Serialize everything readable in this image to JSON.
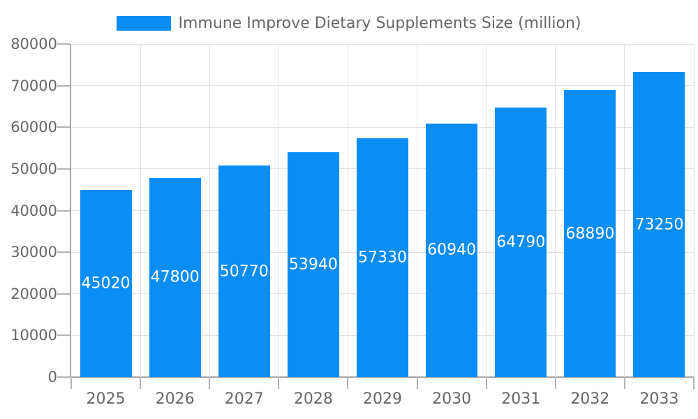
{
  "legend": {
    "swatch_color": "#0a8df5"
  },
  "chart_data": {
    "type": "bar",
    "title": "Immune Improve Dietary Supplements Size (million)",
    "categories": [
      "2025",
      "2026",
      "2027",
      "2028",
      "2029",
      "2030",
      "2031",
      "2032",
      "2033"
    ],
    "values": [
      45020,
      47800,
      50770,
      53940,
      57330,
      60940,
      64790,
      68890,
      73250
    ],
    "xlabel": "",
    "ylabel": "",
    "ylim": [
      0,
      80000
    ],
    "ytick_step": 10000,
    "ytick_labels": [
      "0",
      "10000",
      "20000",
      "30000",
      "40000",
      "50000",
      "60000",
      "70000",
      "80000"
    ],
    "grid": true,
    "legend_position": "top",
    "bar_color": "#0a8df5",
    "value_label_color": "#ffffff"
  },
  "colors": {
    "background": "#ffffff",
    "bar": "#0a8df5",
    "axis_text": "#666666",
    "grid_line": "#e2e2e2",
    "axis_line": "#a6a6a6",
    "tick_line": "#b3b3b3",
    "bar_label": "#ffffff"
  }
}
